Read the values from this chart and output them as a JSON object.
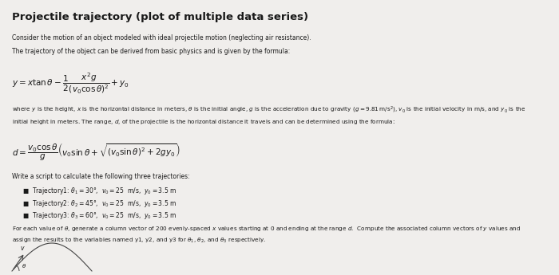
{
  "title": "Projectile trajectory (plot of multiple data series)",
  "bg_color": "#f0eeec",
  "text_color": "#1a1a1a",
  "line1": "Consider the motion of an object modeled with ideal projectile motion (neglecting air resistance).",
  "line2": "The trajectory of the object can be derived from basic physics and is given by the formula:",
  "formula1_left": "$y = x\\tan\\theta - $",
  "formula1_frac_num": "$x^2g$",
  "formula1_frac_den": "$2\\,(v_0\\cos\\theta)^2$",
  "formula1_right": "$+ y_0$",
  "desc1": "where $y$ is the height, $x$ is the horizontal distance in meters, $\\theta$ is the initial angle, $g$ is the acceleration due to gravity ($g = 9.81\\,\\mathrm{m/s}^2$), $v_0$ is the initial velocity in m/s, and $y_0$ is the",
  "desc2": "initial height in meters. The range, $d$, of the projectile is the horizontal distance it travels and can be determined using the formula:",
  "formula2": "$d = \\dfrac{v_0\\cos\\theta}{g}\\left(v_0\\sin\\theta + \\sqrt{(v_0\\sin\\theta)^2 + 2gy_0}\\right)$",
  "write_line": "Write a script to calculate the following three trajectories:",
  "traj1": "Trajectory1: $\\theta_1 = 30°$,  $v_0 = 25$  m/s,  $y_0 = 3.5$ m",
  "traj2": "Trajectory2: $\\theta_2 = 45°$,  $v_0 = 25$  m/s,  $y_0 = 3.5$ m",
  "traj3": "Trajectory3: $\\theta_3 = 60°$,  $v_0 = 25$  m/s,  $y_0 = 3.5$ m",
  "footer1": "For each value of $\\theta$, generate a column vector of 200 evenly-spaced $x$ values starting at 0 and ending at the range $d$.  Compute the associated column vectors of $y$ values and",
  "footer2": "assign the results to the variables named y1, y2, and y3 for $\\theta_1$, $\\theta_2$, and $\\theta_3$ respectively.",
  "title_fontsize": 9.5,
  "body_fontsize": 5.5,
  "formula_fontsize": 6.5
}
